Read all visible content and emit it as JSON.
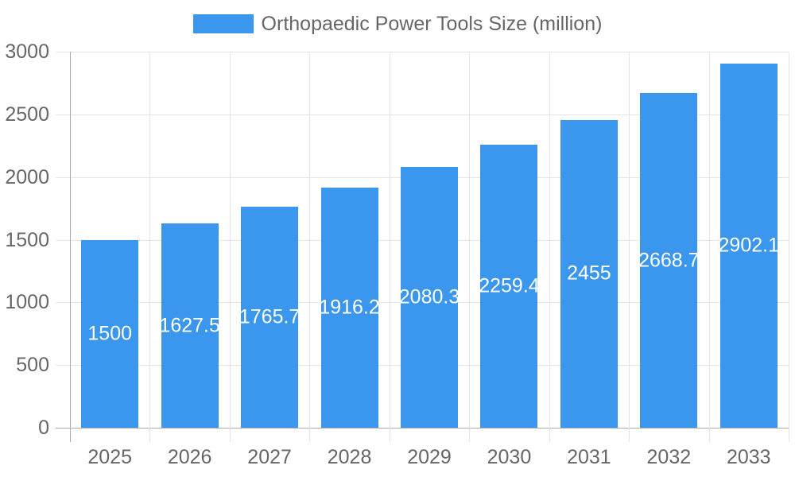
{
  "legend": {
    "label": "Orthopaedic Power Tools Size (million)"
  },
  "colors": {
    "bar": "#3B97ED",
    "gridline": "#E5E5E5",
    "zero_line": "#ABABAB",
    "axis_text": "#666666",
    "value_label_text": "#FFFFFF",
    "background": "#FFFFFF"
  },
  "chart_data": {
    "type": "bar",
    "title": "Orthopaedic Power Tools Size (million)",
    "legend_position": "top",
    "grid": "both",
    "categories": [
      "2025",
      "2026",
      "2027",
      "2028",
      "2029",
      "2030",
      "2031",
      "2032",
      "2033"
    ],
    "values": [
      1500,
      1627.5,
      1765.7,
      1916.2,
      2080.3,
      2259.4,
      2455,
      2668.7,
      2902.1
    ],
    "value_labels": [
      "1500",
      "1627.5",
      "1765.7",
      "1916.2",
      "2080.3",
      "2259.4",
      "2455",
      "2668.7",
      "2902.1"
    ],
    "series_name": "Orthopaedic Power Tools Size (million)",
    "xlabel": "",
    "ylabel": "",
    "ylim": [
      0,
      3000
    ],
    "ytick_step": 500,
    "ytick_labels": [
      "0",
      "500",
      "1000",
      "1500",
      "2000",
      "2500",
      "3000"
    ]
  }
}
